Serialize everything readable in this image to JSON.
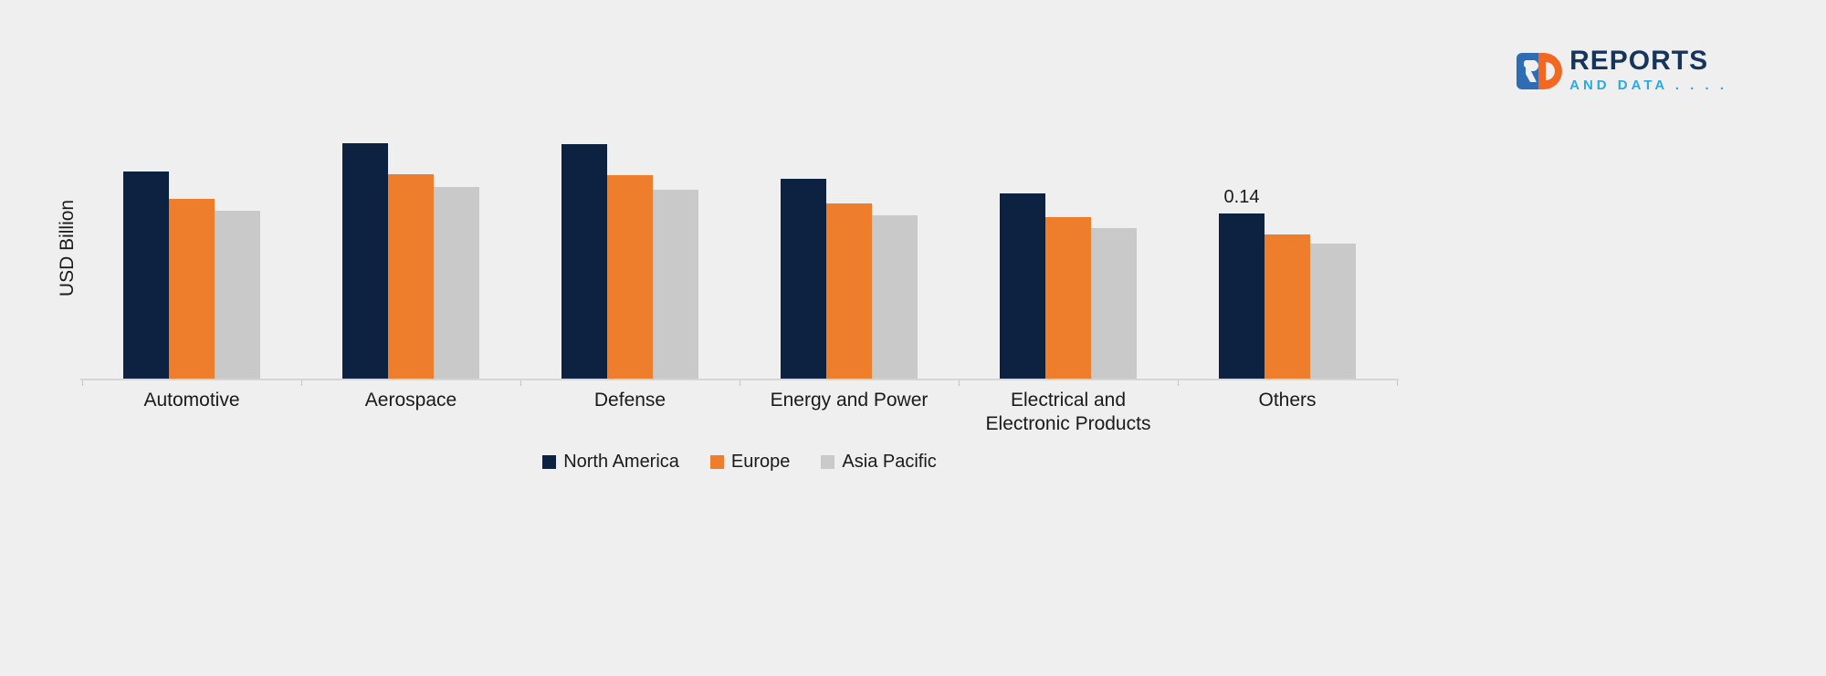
{
  "page": {
    "background": "#efefef"
  },
  "logo": {
    "title": "REPORTS",
    "subtitle": "AND DATA . . . .",
    "icon_colors": {
      "blue": "#2e6db4",
      "orange": "#f26722"
    }
  },
  "chart_data": {
    "type": "bar",
    "title": "",
    "xlabel": "",
    "ylabel": "USD Billion",
    "ylim": [
      0,
      0.22
    ],
    "grid": false,
    "legend_position": "bottom",
    "categories": [
      "Automotive",
      "Aerospace",
      "Defense",
      "Energy and Power",
      "Electrical and Electronic Products",
      "Others"
    ],
    "series": [
      {
        "name": "North America",
        "color": "#0d2240",
        "values": [
          0.175,
          0.199,
          0.198,
          0.169,
          0.157,
          0.14
        ]
      },
      {
        "name": "Europe",
        "color": "#ee7d2c",
        "values": [
          0.152,
          0.173,
          0.172,
          0.148,
          0.137,
          0.122
        ]
      },
      {
        "name": "Asia Pacific",
        "color": "#c9c9c9",
        "values": [
          0.142,
          0.162,
          0.16,
          0.138,
          0.127,
          0.114
        ]
      }
    ],
    "annotations": [
      {
        "category_index": 5,
        "series_index": 0,
        "text": "0.14"
      }
    ]
  }
}
